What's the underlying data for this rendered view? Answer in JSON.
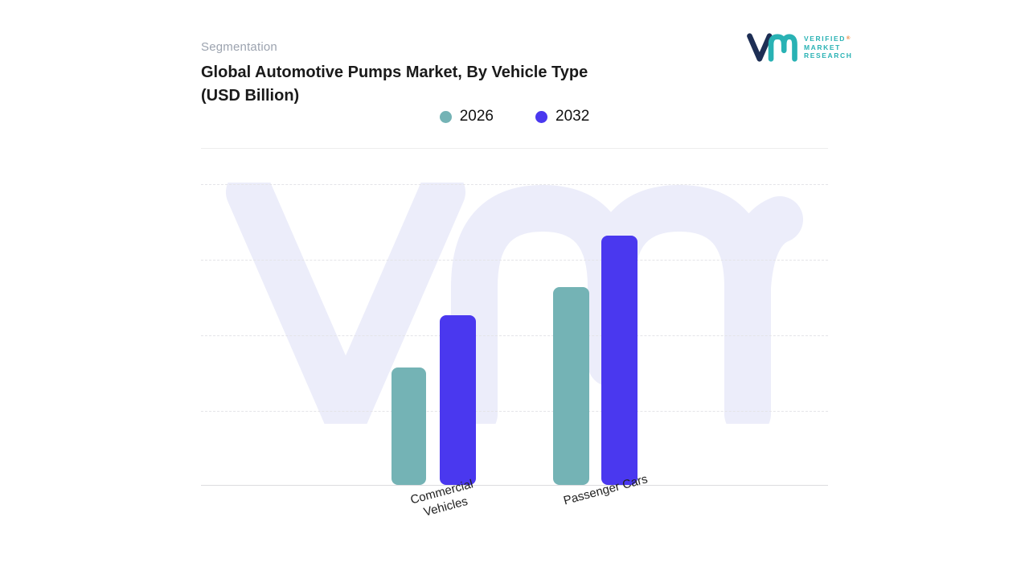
{
  "header": {
    "eyebrow": "Segmentation",
    "title_line1": "Global Automotive Pumps Market, By Vehicle Type",
    "title_line2": "(USD Billion)"
  },
  "logo": {
    "line1": "VERIFIED",
    "line2": "MARKET",
    "line3": "RESEARCH",
    "registered_mark": "®",
    "mark_navy": "#1d2e54",
    "mark_teal": "#29b2b4"
  },
  "legend": [
    {
      "label": "2026",
      "color": "#74b3b5"
    },
    {
      "label": "2032",
      "color": "#4a38ef"
    }
  ],
  "chart_data": {
    "type": "bar",
    "title": "Global Automotive Pumps Market, By Vehicle Type (USD Billion)",
    "xlabel": "",
    "ylabel": "USD Billion",
    "ylim": [
      0,
      37.5
    ],
    "grid": "horizontal-dashed",
    "legend_position": "top-center",
    "categories": [
      {
        "line1": "Commercial",
        "line2": "Vehicles"
      },
      {
        "line1": "Passenger Cars",
        "line2": ""
      }
    ],
    "series": [
      {
        "name": "2026",
        "color": "#74b3b5",
        "values": [
          14.6,
          24.6
        ]
      },
      {
        "name": "2032",
        "color": "#4a38ef",
        "values": [
          21.1,
          31.0
        ]
      }
    ],
    "watermark_color": "#ecedfa"
  }
}
